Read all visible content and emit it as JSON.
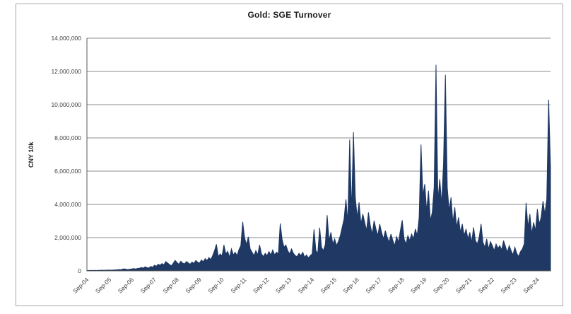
{
  "chart": {
    "title": "Gold: SGE Turnover",
    "y_axis_title": "CNY 10k"
  },
  "chart_data": {
    "type": "area",
    "title": "Gold: SGE Turnover",
    "ylabel": "CNY 10k",
    "xlabel": "",
    "grid": true,
    "legend": false,
    "ylim": [
      0,
      14000000
    ],
    "ytick_step": 2000000,
    "ytick_labels": [
      "0",
      "2,000,000",
      "4,000,000",
      "6,000,000",
      "8,000,000",
      "10,000,000",
      "12,000,000",
      "14,000,000"
    ],
    "xtick_labels": [
      "Sep-04",
      "Sep-05",
      "Sep-06",
      "Sep-07",
      "Sep-08",
      "Sep-09",
      "Sep-10",
      "Sep-11",
      "Sep-12",
      "Sep-13",
      "Sep-14",
      "Sep-15",
      "Sep-16",
      "Sep-17",
      "Sep-18",
      "Sep-19",
      "Sep-20",
      "Sep-21",
      "Sep-22",
      "Sep-23",
      "Sep-24"
    ],
    "xtick_month_interval": 12,
    "series_name": "SGE gold turnover",
    "series_start": "Sep-2004",
    "series_end": "Apr-2025",
    "frequency": "monthly",
    "value_unit": "CNY 10k",
    "value_scale": 1000000,
    "values_millions": [
      0.02,
      0.02,
      0.03,
      0.02,
      0.03,
      0.02,
      0.03,
      0.03,
      0.04,
      0.03,
      0.04,
      0.04,
      0.05,
      0.04,
      0.05,
      0.06,
      0.06,
      0.08,
      0.07,
      0.1,
      0.12,
      0.09,
      0.08,
      0.1,
      0.12,
      0.14,
      0.11,
      0.15,
      0.16,
      0.2,
      0.17,
      0.24,
      0.2,
      0.17,
      0.27,
      0.22,
      0.34,
      0.28,
      0.4,
      0.34,
      0.44,
      0.36,
      0.56,
      0.47,
      0.38,
      0.3,
      0.46,
      0.63,
      0.5,
      0.4,
      0.58,
      0.47,
      0.42,
      0.56,
      0.48,
      0.4,
      0.53,
      0.45,
      0.62,
      0.52,
      0.47,
      0.66,
      0.55,
      0.74,
      0.62,
      0.8,
      0.68,
      0.92,
      1.22,
      1.6,
      0.86,
      1.02,
      0.9,
      1.56,
      1.02,
      1.18,
      0.82,
      1.32,
      0.96,
      1.12,
      0.92,
      1.28,
      1.52,
      2.95,
      2.0,
      1.58,
      2.05,
      1.32,
      1.12,
      0.92,
      1.22,
      0.96,
      1.56,
      1.02,
      0.86,
      1.06,
      0.92,
      1.16,
      0.96,
      1.26,
      0.96,
      1.12,
      1.02,
      2.85,
      1.9,
      1.42,
      1.56,
      1.22,
      1.02,
      1.32,
      1.06,
      0.92,
      0.86,
      1.06,
      0.92,
      1.12,
      0.82,
      0.96,
      0.78,
      0.92,
      1.02,
      2.5,
      1.22,
      1.06,
      2.6,
      1.42,
      1.22,
      1.58,
      3.35,
      1.82,
      2.32,
      1.62,
      1.92,
      1.52,
      1.78,
      2.12,
      2.62,
      3.12,
      4.3,
      2.92,
      7.9,
      3.52,
      8.35,
      4.42,
      3.22,
      4.12,
      2.82,
      3.42,
      2.92,
      2.42,
      3.52,
      2.72,
      2.22,
      3.02,
      2.52,
      2.12,
      2.82,
      2.32,
      1.92,
      2.42,
      2.02,
      1.72,
      2.22,
      1.82,
      1.52,
      2.06,
      1.72,
      2.42,
      3.05,
      1.92,
      1.62,
      2.12,
      1.82,
      2.22,
      1.92,
      2.52,
      2.12,
      3.22,
      7.6,
      4.52,
      5.22,
      3.62,
      4.82,
      3.02,
      3.52,
      5.02,
      12.4,
      4.22,
      5.52,
      4.02,
      6.52,
      11.8,
      5.02,
      3.62,
      4.42,
      2.92,
      3.82,
      2.62,
      3.22,
      2.32,
      2.82,
      2.12,
      2.52,
      1.92,
      2.32,
      1.72,
      2.62,
      1.82,
      1.62,
      2.02,
      2.82,
      1.72,
      1.42,
      1.92,
      1.32,
      1.76,
      1.52,
      1.22,
      1.62,
      1.36,
      1.52,
      1.26,
      1.82,
      1.46,
      1.12,
      1.52,
      1.22,
      0.96,
      1.42,
      1.06,
      0.86,
      1.16,
      1.32,
      1.62,
      4.1,
      2.62,
      3.42,
      2.22,
      2.92,
      2.42,
      3.72,
      2.82,
      3.22,
      4.2,
      3.42,
      4.32,
      10.3,
      6.2
    ],
    "colors": {
      "series": "#1f3864",
      "grid": "#8c8c8c",
      "axis": "#595959",
      "tick_text": "#404040",
      "border": "#a6a6a6",
      "background": "#ffffff"
    }
  }
}
